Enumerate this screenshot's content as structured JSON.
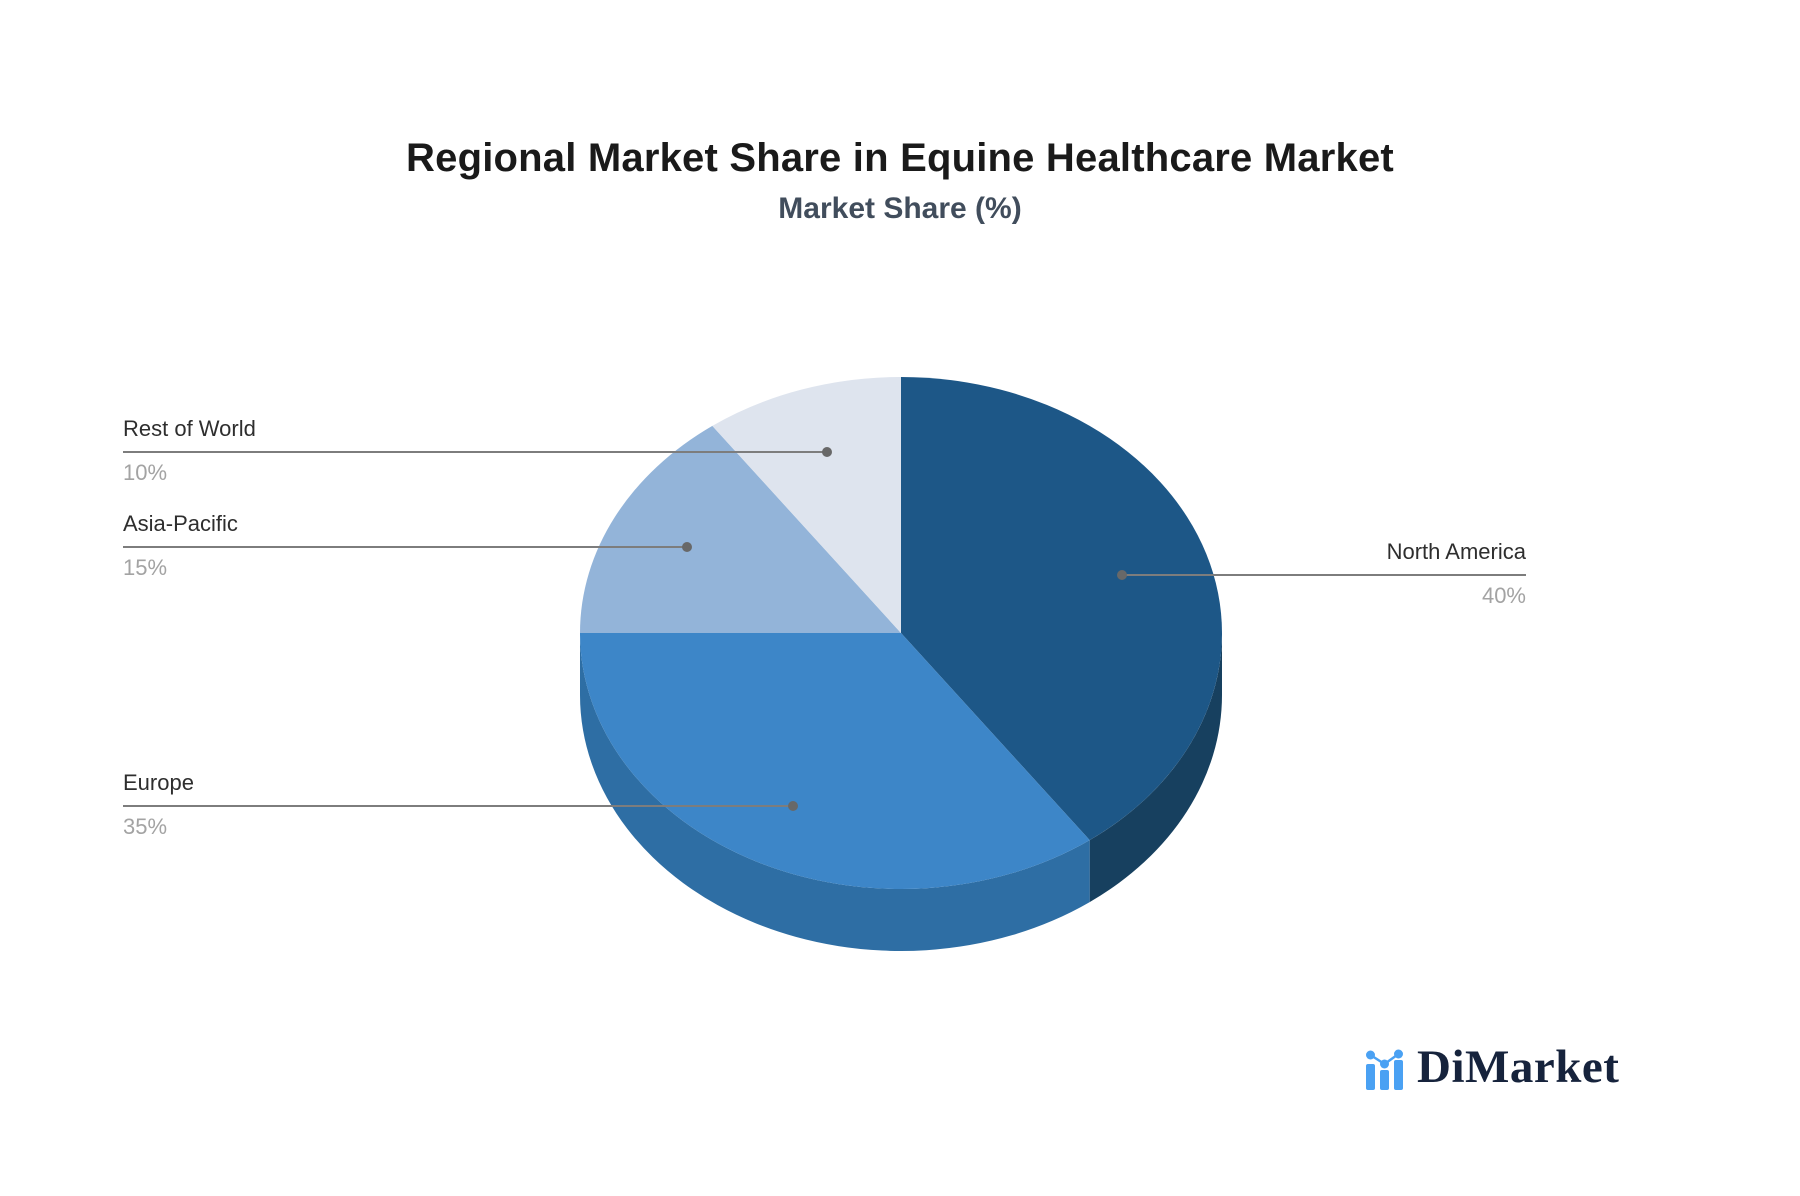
{
  "page": {
    "title": "Regional Market Share in Equine Healthcare Market",
    "subtitle": "Market Share (%)"
  },
  "brand": {
    "name": "DiMarket"
  },
  "chart_data": {
    "type": "pie",
    "title": "Regional Market Share in Equine Healthcare Market",
    "subtitle": "Market Share (%)",
    "unit": "%",
    "style": "3d",
    "direction": "clockwise",
    "start_angle_clockwise_from_top_deg": 0,
    "legend_position": "callout-labels",
    "slices": [
      {
        "label": "North America",
        "value": 40,
        "pct_label": "40%",
        "color": "#1d5787",
        "side_color": "#17405f"
      },
      {
        "label": "Europe",
        "value": 35,
        "pct_label": "35%",
        "color": "#3d86c8",
        "side_color": "#2e6ea4"
      },
      {
        "label": "Asia-Pacific",
        "value": 15,
        "pct_label": "15%",
        "color": "#93b4d9",
        "side_color": "#7fa3c9"
      },
      {
        "label": "Rest of World",
        "value": 10,
        "pct_label": "10%",
        "color": "#dee4ee",
        "side_color": "#c4cedd"
      }
    ]
  },
  "colors": {
    "background": "#ffffff",
    "title": "#1a1a1a",
    "subtitle": "#414d5c",
    "label_text": "#2e2e2e",
    "value_text": "#a3a3a3",
    "leader_line": "#7d7d7d",
    "leader_dot": "#686868",
    "logo_accent": "#4aa1f3",
    "logo_text": "#16233c"
  }
}
